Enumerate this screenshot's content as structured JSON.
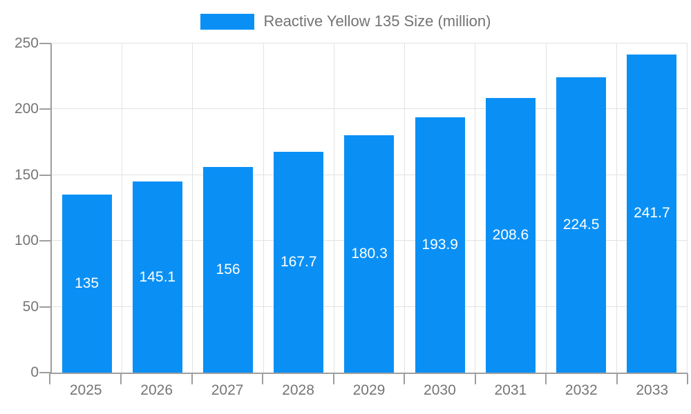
{
  "legend": {
    "label": "Reactive Yellow 135 Size (million)"
  },
  "chart_data": {
    "type": "bar",
    "title": "",
    "xlabel": "",
    "ylabel": "",
    "categories": [
      "2025",
      "2026",
      "2027",
      "2028",
      "2029",
      "2030",
      "2031",
      "2032",
      "2033"
    ],
    "series": [
      {
        "name": "Reactive Yellow 135 Size (million)",
        "values": [
          135,
          145.1,
          156,
          167.7,
          180.3,
          193.9,
          208.6,
          224.5,
          241.7
        ],
        "value_labels": [
          "135",
          "145.1",
          "156",
          "167.7",
          "180.3",
          "193.9",
          "208.6",
          "224.5",
          "241.7"
        ]
      }
    ],
    "ylim": [
      0,
      250
    ],
    "yticks": [
      0,
      50,
      100,
      150,
      200,
      250
    ],
    "grid": true,
    "legend_position": "top-center",
    "value_label_position": "inside-center"
  },
  "colors": {
    "bar": "#0a90f5",
    "axis": "#9e9e9e",
    "gridline": "#e2e2e2",
    "tick_text": "#757575",
    "legend_text": "#737373",
    "value_label_text": "#ffffff",
    "background": "#ffffff"
  }
}
